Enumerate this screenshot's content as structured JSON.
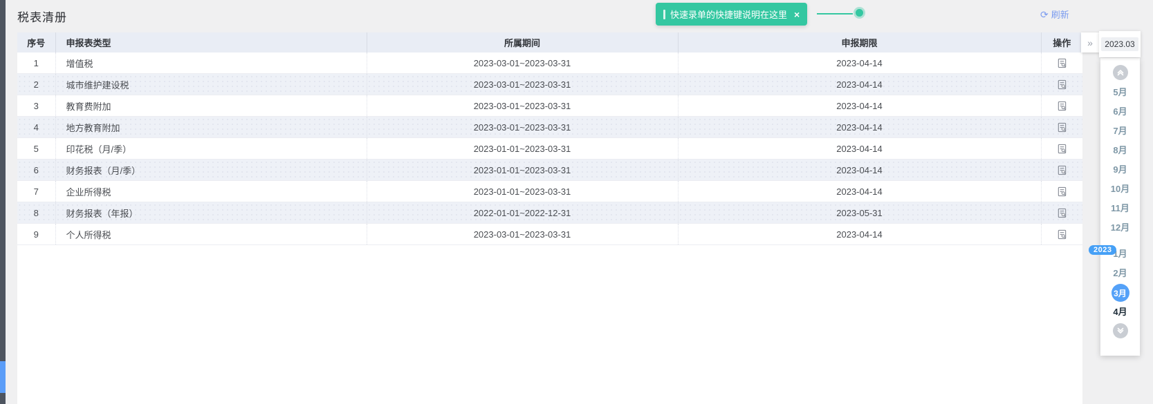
{
  "page": {
    "title": "税表清册"
  },
  "toolbar": {
    "refresh_label": "刷新"
  },
  "tooltip": {
    "text": "快速录单的快捷键说明在这里",
    "close_label": "×"
  },
  "table": {
    "columns": [
      "序号",
      "申报表类型",
      "所属期间",
      "申报期限",
      "操作"
    ],
    "rows": [
      {
        "no": "1",
        "type": "增值税",
        "period": "2023-03-01~2023-03-31",
        "deadline": "2023-04-14"
      },
      {
        "no": "2",
        "type": "城市维护建设税",
        "period": "2023-03-01~2023-03-31",
        "deadline": "2023-04-14"
      },
      {
        "no": "3",
        "type": "教育费附加",
        "period": "2023-03-01~2023-03-31",
        "deadline": "2023-04-14"
      },
      {
        "no": "4",
        "type": "地方教育附加",
        "period": "2023-03-01~2023-03-31",
        "deadline": "2023-04-14"
      },
      {
        "no": "5",
        "type": "印花税（月/季）",
        "period": "2023-01-01~2023-03-31",
        "deadline": "2023-04-14"
      },
      {
        "no": "6",
        "type": "财务报表（月/季）",
        "period": "2023-01-01~2023-03-31",
        "deadline": "2023-04-14"
      },
      {
        "no": "7",
        "type": "企业所得税",
        "period": "2023-01-01~2023-03-31",
        "deadline": "2023-04-14"
      },
      {
        "no": "8",
        "type": "财务报表（年报）",
        "period": "2022-01-01~2022-12-31",
        "deadline": "2023-05-31"
      },
      {
        "no": "9",
        "type": "个人所得税",
        "period": "2023-03-01~2023-03-31",
        "deadline": "2023-04-14"
      }
    ]
  },
  "month_picker": {
    "current_label": "2023.03",
    "collapse_icon": "»",
    "year_badge": "2023",
    "months_before": [
      "5月",
      "6月",
      "7月",
      "8月",
      "9月",
      "10月",
      "11月",
      "12月"
    ],
    "months_after": [
      "1月",
      "2月"
    ],
    "selected_month": "3月",
    "next_month": "4月"
  },
  "icons": {
    "refresh": "⟳",
    "close": "×",
    "collapse": "»",
    "view_detail": "document-search",
    "scroll_up": "double-chevron-up",
    "scroll_down": "double-chevron-down"
  },
  "colors": {
    "accent_green": "#34c7a1",
    "accent_blue": "#54a1f8",
    "refresh_blue": "#7b9cf0",
    "header_bg": "#e9edf5",
    "stripe_bg": "#eef1f7",
    "sidebar_strip": "#4e5560",
    "sidebar_thumb": "#5b9df8",
    "month_text": "#7e97a6"
  }
}
